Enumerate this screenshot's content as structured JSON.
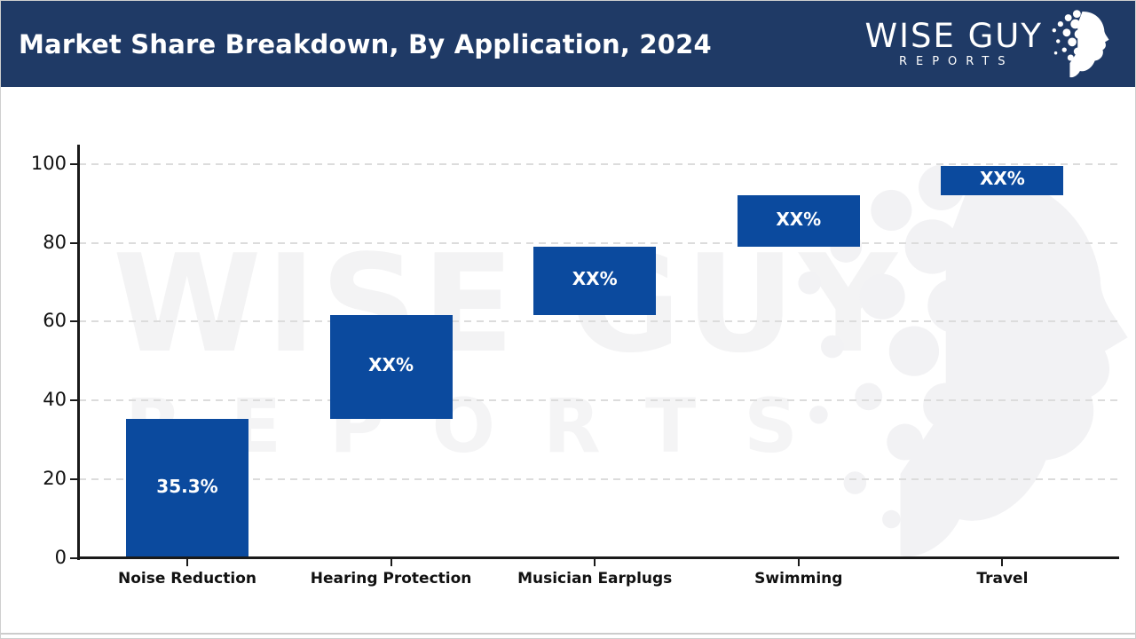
{
  "header": {
    "title": "Market Share Breakdown, By Application, 2024",
    "logo_line1": "WISE GUY",
    "logo_line2": "REPORTS"
  },
  "watermark": {
    "line1": "WISE GUY",
    "line2": "REPORTS"
  },
  "colors": {
    "header_bg": "#1f3a66",
    "bar_fill": "#0b4a9e",
    "bar_label": "#ffffff",
    "axis": "#1a1a1a",
    "gridline": "#dcdcdc",
    "watermark": "#f3f3f4"
  },
  "chart_data": {
    "type": "bar",
    "variant": "waterfall",
    "title": "Market Share Breakdown, By Application, 2024",
    "unit": "%",
    "categories": [
      "Noise Reduction",
      "Hearing Protection",
      "Musician Earplugs",
      "Swimming",
      "Travel"
    ],
    "bars": [
      {
        "category": "Noise Reduction",
        "start": 0,
        "end": 35.3,
        "label": "35.3%"
      },
      {
        "category": "Hearing Protection",
        "start": 35.3,
        "end": 61.7,
        "label": "XX%"
      },
      {
        "category": "Musician Earplugs",
        "start": 61.7,
        "end": 79.0,
        "label": "XX%"
      },
      {
        "category": "Swimming",
        "start": 79.0,
        "end": 92.1,
        "label": "XX%"
      },
      {
        "category": "Travel",
        "start": 92.1,
        "end": 99.5,
        "label": "XX%"
      }
    ],
    "yticks": [
      0,
      20,
      40,
      60,
      80,
      100
    ],
    "ylim": [
      0,
      104
    ],
    "grid": "horizontal-dashed",
    "legend": "none"
  }
}
